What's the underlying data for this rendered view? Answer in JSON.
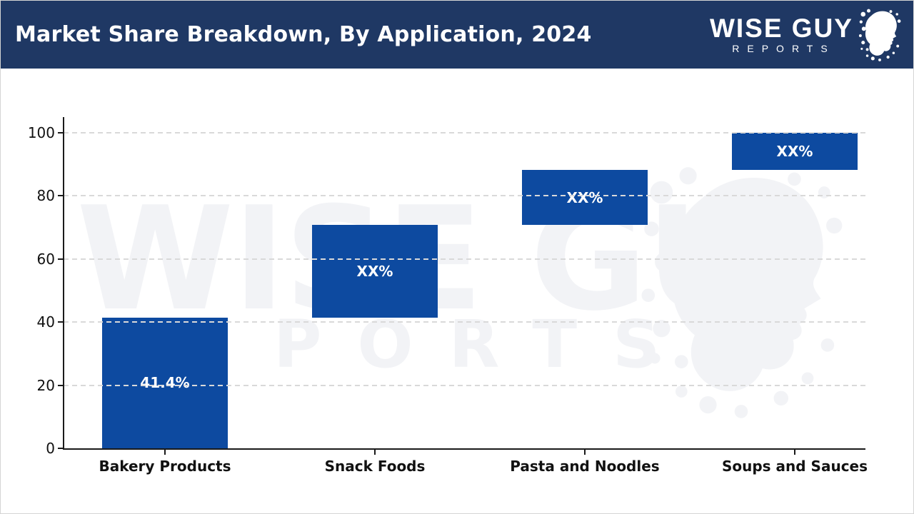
{
  "header": {
    "title": "Market Share Breakdown, By Application, 2024",
    "logo": {
      "primary": "WISE GUY",
      "secondary": "REPORTS"
    }
  },
  "watermark": {
    "primary": "WISE GU",
    "secondary": "PORTS"
  },
  "chart_data": {
    "type": "bar",
    "subtype": "waterfall",
    "title": "Market Share Breakdown, By Application, 2024",
    "categories": [
      "Bakery Products",
      "Snack Foods",
      "Pasta and Noodles",
      "Soups and Sauces"
    ],
    "segments": [
      {
        "category": "Bakery Products",
        "label": "41.4%",
        "start": 0,
        "end": 41.4
      },
      {
        "category": "Snack Foods",
        "label": "XX%",
        "start": 41.4,
        "end": 70.8
      },
      {
        "category": "Pasta and Noodles",
        "label": "XX%",
        "start": 70.8,
        "end": 88.2
      },
      {
        "category": "Soups and Sauces",
        "label": "XX%",
        "start": 88.2,
        "end": 100
      }
    ],
    "xlabel": "",
    "ylabel": "",
    "yticks": [
      0,
      20,
      40,
      60,
      80,
      100
    ],
    "ylim": [
      0,
      105
    ],
    "grid": "dashed-horizontal",
    "legend": "none",
    "colors": {
      "bar": "#0d4aa0",
      "bar_label": "#ffffff",
      "header_bg": "#1f3864",
      "watermark": "#f2f3f6",
      "gridline": "#d9d9d9",
      "axis": "#1a1a1a"
    }
  }
}
